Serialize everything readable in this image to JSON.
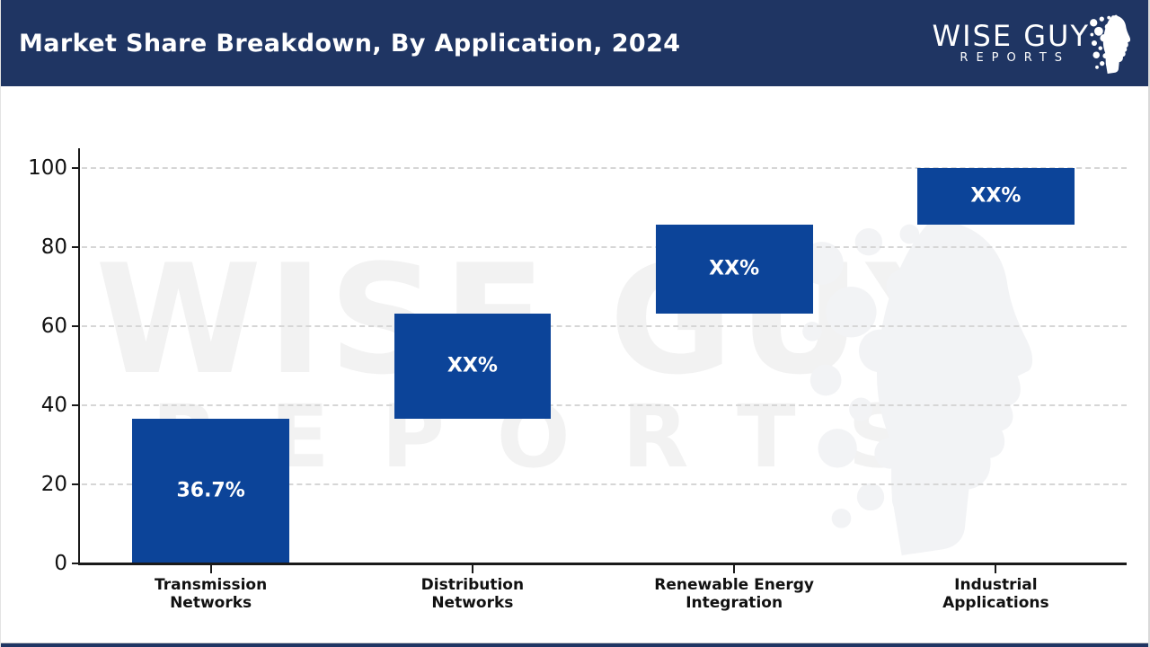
{
  "header": {
    "title": "Market Share Breakdown, By Application, 2024",
    "bg_color": "#1f3563",
    "logo": {
      "line1": "WISE GUY",
      "line2": "REPORTS"
    }
  },
  "watermark": {
    "line1": "WISE GUY",
    "line2": "REPORTS"
  },
  "chart_data": {
    "type": "bar",
    "variant": "floating-waterfall",
    "title": "Market Share Breakdown, By Application, 2024",
    "categories": [
      {
        "lines": [
          "Transmission",
          "Networks"
        ]
      },
      {
        "lines": [
          "Distribution",
          "Networks"
        ]
      },
      {
        "lines": [
          "Renewable Energy",
          "Integration"
        ]
      },
      {
        "lines": [
          "Industrial",
          "Applications"
        ]
      }
    ],
    "series": [
      {
        "name": "Market Share (%)",
        "segments": [
          {
            "start": 0,
            "end": 36.7,
            "label": "36.7%"
          },
          {
            "start": 36.7,
            "end": 63.2,
            "label": "XX%"
          },
          {
            "start": 63.2,
            "end": 85.7,
            "label": "XX%"
          },
          {
            "start": 85.7,
            "end": 100,
            "label": "XX%"
          }
        ]
      }
    ],
    "bar_color": "#0c4499",
    "bar_label_color": "#ffffff",
    "ylim": [
      0,
      105
    ],
    "yticks": [
      0,
      20,
      40,
      60,
      80,
      100
    ],
    "grid": "horizontal-dashed",
    "legend": "none"
  }
}
